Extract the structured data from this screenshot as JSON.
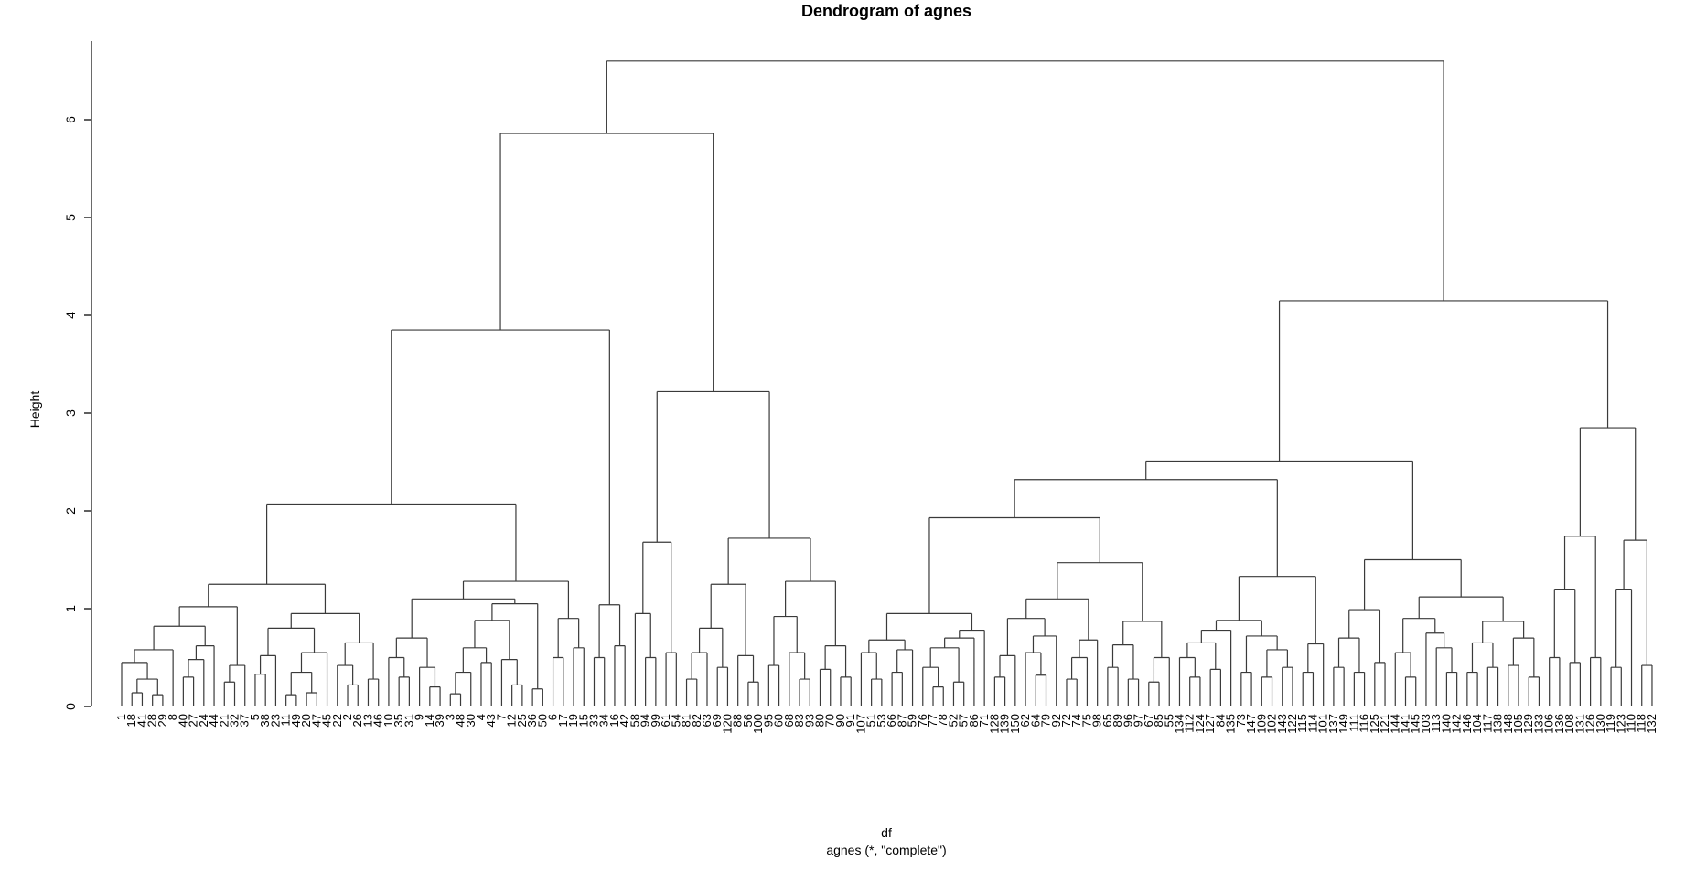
{
  "title": "Dendrogram of agnes",
  "x_axis_label_line1": "df",
  "x_axis_label_line2": "agnes (*, \"complete\")",
  "y_axis_label": "Height",
  "colors": {
    "line": "#3a3a3a",
    "text": "#000000",
    "background": "#ffffff"
  },
  "chart_data": {
    "type": "dendrogram",
    "title": "Dendrogram of agnes",
    "xlabel": [
      "df",
      "agnes (*, \"complete\")"
    ],
    "ylabel": "Height",
    "yticks": [
      0,
      1,
      2,
      3,
      4,
      5,
      6
    ],
    "ylim": [
      0,
      6.8
    ],
    "root_merge_height": 6.6,
    "n_leaves": 150,
    "leaf_order": [
      "1",
      "18",
      "41",
      "28",
      "29",
      "8",
      "40",
      "27",
      "24",
      "44",
      "21",
      "32",
      "37",
      "5",
      "38",
      "23",
      "11",
      "49",
      "20",
      "47",
      "45",
      "22",
      "2",
      "26",
      "13",
      "46",
      "10",
      "35",
      "31",
      "9",
      "14",
      "39",
      "3",
      "48",
      "30",
      "4",
      "43",
      "7",
      "12",
      "25",
      "36",
      "50",
      "6",
      "17",
      "19",
      "15",
      "33",
      "34",
      "16",
      "42",
      "58",
      "94",
      "99",
      "61",
      "54",
      "81",
      "82",
      "63",
      "69",
      "120",
      "88",
      "56",
      "100",
      "95",
      "60",
      "68",
      "83",
      "93",
      "80",
      "70",
      "90",
      "91",
      "107",
      "51",
      "53",
      "66",
      "87",
      "59",
      "76",
      "77",
      "78",
      "52",
      "57",
      "86",
      "71",
      "128",
      "139",
      "150",
      "62",
      "64",
      "79",
      "92",
      "72",
      "74",
      "75",
      "98",
      "65",
      "89",
      "96",
      "97",
      "67",
      "85",
      "55",
      "134",
      "112",
      "124",
      "127",
      "84",
      "135",
      "73",
      "147",
      "109",
      "102",
      "143",
      "122",
      "115",
      "114",
      "101",
      "137",
      "149",
      "111",
      "116",
      "125",
      "121",
      "144",
      "141",
      "145",
      "103",
      "113",
      "140",
      "142",
      "146",
      "104",
      "117",
      "138",
      "148",
      "105",
      "129",
      "133",
      "106",
      "136",
      "108",
      "131",
      "126",
      "130",
      "119",
      "123",
      "110",
      "118",
      "132"
    ],
    "tree": [
      6.6,
      [
        5.86,
        [
          3.85,
          [
            2.07,
            [
              1.25,
              [
                1.02,
                [
                  0.82,
                  [
                    0.58,
                    [
                      0.45,
                      "1",
                      [
                        0.28,
                        [
                          0.14,
                          "18",
                          "41"
                        ],
                        [
                          0.12,
                          "28",
                          "29"
                        ]
                      ]
                    ],
                    "8"
                  ],
                  [
                    0.62,
                    [
                      0.48,
                      [
                        0.3,
                        "40",
                        "27"
                      ],
                      "24"
                    ],
                    "44"
                  ]
                ],
                [
                  0.42,
                  [
                    0.25,
                    "21",
                    "32"
                  ],
                  "37"
                ]
              ],
              [
                0.95,
                [
                  0.8,
                  [
                    0.52,
                    [
                      0.33,
                      "5",
                      "38"
                    ],
                    "23"
                  ],
                  [
                    0.55,
                    [
                      0.35,
                      [
                        0.12,
                        "11",
                        "49"
                      ],
                      [
                        0.14,
                        "20",
                        "47"
                      ]
                    ],
                    "45"
                  ]
                ],
                [
                  0.65,
                  [
                    0.42,
                    "22",
                    [
                      0.22,
                      "2",
                      "26"
                    ]
                  ],
                  [
                    0.28,
                    "13",
                    "46"
                  ]
                ]
              ]
            ],
            [
              1.28,
              [
                1.1,
                [
                  0.7,
                  [
                    0.5,
                    "10",
                    [
                      0.3,
                      "35",
                      "31"
                    ]
                  ],
                  [
                    0.4,
                    "9",
                    [
                      0.2,
                      "14",
                      "39"
                    ]
                  ]
                ],
                [
                  1.05,
                  [
                    0.88,
                    [
                      0.6,
                      [
                        0.35,
                        [
                          0.13,
                          "3",
                          "48"
                        ],
                        "30"
                      ],
                      [
                        0.45,
                        "4",
                        "43"
                      ]
                    ],
                    [
                      0.48,
                      "7",
                      [
                        0.22,
                        "12",
                        "25"
                      ]
                    ]
                  ],
                  [
                    0.18,
                    "36",
                    "50"
                  ]
                ]
              ],
              [
                0.9,
                [
                  0.5,
                  "6",
                  "17"
                ],
                [
                  0.6,
                  "19",
                  "15"
                ]
              ]
            ]
          ],
          [
            1.04,
            [
              0.5,
              "33",
              "34"
            ],
            [
              0.62,
              "16",
              "42"
            ]
          ]
        ],
        [
          3.22,
          [
            1.68,
            [
              0.95,
              "58",
              [
                0.5,
                "94",
                "99"
              ]
            ],
            [
              0.55,
              "61",
              "54"
            ]
          ],
          [
            1.72,
            [
              1.25,
              [
                0.8,
                [
                  0.55,
                  [
                    0.28,
                    "81",
                    "82"
                  ],
                  "63"
                ],
                [
                  0.4,
                  "69",
                  "120"
                ]
              ],
              [
                0.52,
                "88",
                [
                  0.25,
                  "56",
                  "100"
                ]
              ]
            ],
            [
              1.28,
              [
                0.92,
                [
                  0.42,
                  "95",
                  "60"
                ],
                [
                  0.55,
                  "68",
                  [
                    0.28,
                    "83",
                    "93"
                  ]
                ]
              ],
              [
                0.62,
                [
                  0.38,
                  "80",
                  "70"
                ],
                [
                  0.3,
                  "90",
                  "91"
                ]
              ]
            ]
          ]
        ]
      ],
      [
        4.15,
        [
          2.51,
          [
            2.32,
            [
              1.93,
              [
                0.95,
                [
                  0.68,
                  [
                    0.55,
                    "107",
                    [
                      0.28,
                      "51",
                      "53"
                    ]
                  ],
                  [
                    0.58,
                    [
                      0.35,
                      "66",
                      "87"
                    ],
                    "59"
                  ]
                ],
                [
                  0.78,
                  [
                    0.7,
                    [
                      0.6,
                      [
                        0.4,
                        "76",
                        [
                          0.2,
                          "77",
                          "78"
                        ]
                      ],
                      [
                        0.25,
                        "52",
                        "57"
                      ]
                    ],
                    "86"
                  ],
                  "71"
                ]
              ],
              [
                1.47,
                [
                  1.1,
                  [
                    0.9,
                    [
                      0.52,
                      [
                        0.3,
                        "128",
                        "139"
                      ],
                      "150"
                    ],
                    [
                      0.72,
                      [
                        0.55,
                        "62",
                        [
                          0.32,
                          "64",
                          "79"
                        ]
                      ],
                      "92"
                    ]
                  ],
                  [
                    0.68,
                    [
                      0.5,
                      [
                        0.28,
                        "72",
                        "74"
                      ],
                      "75"
                    ],
                    "98"
                  ]
                ],
                [
                  0.87,
                  [
                    0.63,
                    [
                      0.4,
                      "65",
                      "89"
                    ],
                    [
                      0.28,
                      "96",
                      "97"
                    ]
                  ],
                  [
                    0.5,
                    [
                      0.25,
                      "67",
                      "85"
                    ],
                    "55"
                  ]
                ]
              ]
            ],
            [
              1.33,
              [
                0.88,
                [
                  0.78,
                  [
                    0.65,
                    [
                      0.5,
                      "134",
                      [
                        0.3,
                        "112",
                        "124"
                      ]
                    ],
                    [
                      0.38,
                      "127",
                      "84"
                    ]
                  ],
                  "135"
                ],
                [
                  0.72,
                  [
                    0.35,
                    "73",
                    "147"
                  ],
                  [
                    0.58,
                    [
                      0.3,
                      "109",
                      "102"
                    ],
                    [
                      0.4,
                      "143",
                      "122"
                    ]
                  ]
                ]
              ],
              [
                0.64,
                [
                  0.35,
                  "115",
                  "114"
                ],
                "101"
              ]
            ]
          ],
          [
            1.5,
            [
              0.99,
              [
                0.7,
                [
                  0.4,
                  "137",
                  "149"
                ],
                [
                  0.35,
                  "111",
                  "116"
                ]
              ],
              [
                0.45,
                "125",
                "121"
              ]
            ],
            [
              1.12,
              [
                0.9,
                [
                  0.55,
                  "144",
                  [
                    0.3,
                    "141",
                    "145"
                  ]
                ],
                [
                  0.75,
                  "103",
                  [
                    0.6,
                    "113",
                    [
                      0.35,
                      "140",
                      "142"
                    ]
                  ]
                ]
              ],
              [
                0.87,
                [
                  0.65,
                  [
                    0.35,
                    "146",
                    "104"
                  ],
                  [
                    0.4,
                    "117",
                    "138"
                  ]
                ],
                [
                  0.7,
                  [
                    0.42,
                    "148",
                    "105"
                  ],
                  [
                    0.3,
                    "129",
                    "133"
                  ]
                ]
              ]
            ]
          ]
        ],
        [
          2.85,
          [
            1.74,
            [
              1.2,
              [
                0.5,
                "106",
                "136"
              ],
              [
                0.45,
                "108",
                "131"
              ]
            ],
            [
              0.5,
              "126",
              "130"
            ]
          ],
          [
            1.7,
            [
              1.2,
              [
                0.4,
                "119",
                "123"
              ],
              "110"
            ],
            [
              0.42,
              "118",
              "132"
            ]
          ]
        ]
      ]
    ],
    "geometry": {
      "axis_x": 100,
      "axis_top_y": 45,
      "y_of_zero": 773,
      "pixels_per_unit": 107,
      "leaf_x_start": 133,
      "leaf_x_step": 11.228,
      "tick_length": 8,
      "leaf_label_font": 13,
      "tick_label_font": 14
    },
    "legend": null,
    "grid": false
  }
}
